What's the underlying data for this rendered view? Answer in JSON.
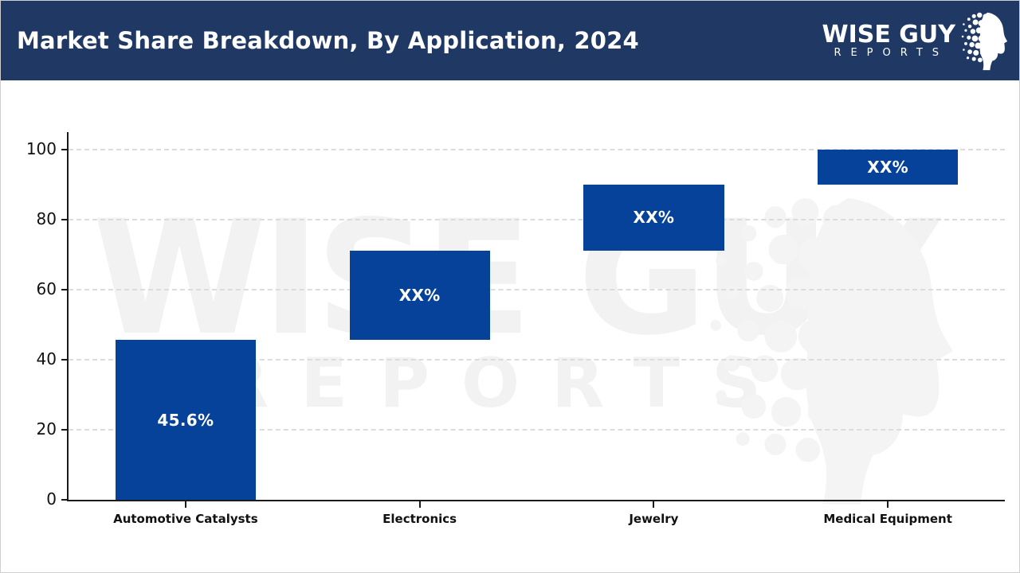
{
  "header": {
    "title": "Market Share Breakdown, By Application, 2024",
    "logo": {
      "line1": "WISE GUY",
      "line2": "REPORTS"
    }
  },
  "watermark": {
    "line1": "WISE GUY",
    "line2": "REPORTS"
  },
  "chart_data": {
    "type": "bar",
    "subtype": "waterfall-breakdown",
    "title": "Market Share Breakdown, By Application, 2024",
    "categories": [
      "Automotive Catalysts",
      "Electronics",
      "Jewelry",
      "Medical Equipment"
    ],
    "segments": [
      {
        "category": "Automotive Catalysts",
        "start": 0,
        "end": 45.6,
        "value_label": "45.6%"
      },
      {
        "category": "Electronics",
        "start": 45.6,
        "end": 71.2,
        "value_label": "XX%"
      },
      {
        "category": "Jewelry",
        "start": 71.2,
        "end": 90,
        "value_label": "XX%"
      },
      {
        "category": "Medical Equipment",
        "start": 90,
        "end": 100,
        "value_label": "XX%"
      }
    ],
    "xlabel": "",
    "ylabel": "",
    "yticks": [
      0,
      20,
      40,
      60,
      80,
      100
    ],
    "ylim": [
      0,
      105
    ],
    "grid": "horizontal-dashed",
    "legend": "none",
    "colors": {
      "bar": "#06429a",
      "bar_label": "#ffffff",
      "header_bg": "#1f3864",
      "grid": "#dcdcdc",
      "axis": "#1a1a1a",
      "watermark": "#f2f2f2"
    }
  }
}
